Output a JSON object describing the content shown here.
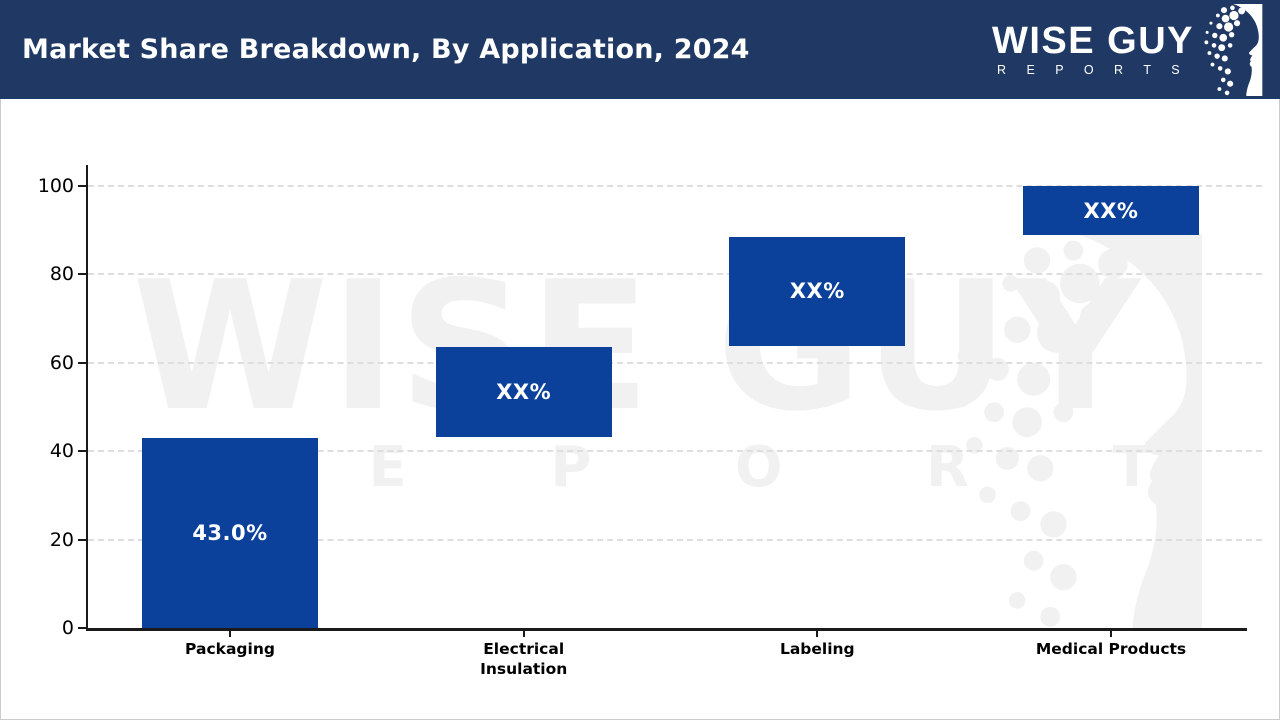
{
  "header": {
    "title": "Market Share Breakdown, By Application, 2024",
    "logo": {
      "line1": "WISE GUY",
      "line2": "R E P O R T S"
    }
  },
  "watermark": {
    "line1": "WISE GUY",
    "line2": "R E P O R T S"
  },
  "colors": {
    "header_bg": "#1f3864",
    "header_text": "#ffffff",
    "bar": "#0b419b",
    "bar_label": "#ffffff",
    "grid": "#dedede",
    "axis": "#1a1a1a",
    "tick_text": "#000000",
    "watermark": "#f1f1f1",
    "frame": "#cccccc",
    "canvas": "#ffffff"
  },
  "chart_data": {
    "type": "bar",
    "subtype": "waterfall",
    "title": "Market Share Breakdown, By Application, 2024",
    "xlabel": "",
    "ylabel": "",
    "ylim": [
      0,
      105
    ],
    "grid": "dashed-horizontal",
    "legend": "none",
    "categories": [
      "Packaging",
      "Electrical\nInsulation",
      "Labeling",
      "Medical Products"
    ],
    "yticks": [
      0,
      20,
      40,
      60,
      80,
      100
    ],
    "segments": [
      {
        "category": "Packaging",
        "start": 0,
        "end": 43,
        "value_label": "43.0%"
      },
      {
        "category": "Electrical Insulation",
        "start": 43.2,
        "end": 63.4,
        "value_label": "XX%"
      },
      {
        "category": "Labeling",
        "start": 63.7,
        "end": 88.4,
        "value_label": "XX%"
      },
      {
        "category": "Medical Products",
        "start": 88.7,
        "end": 99.8,
        "value_label": "XX%"
      }
    ]
  }
}
